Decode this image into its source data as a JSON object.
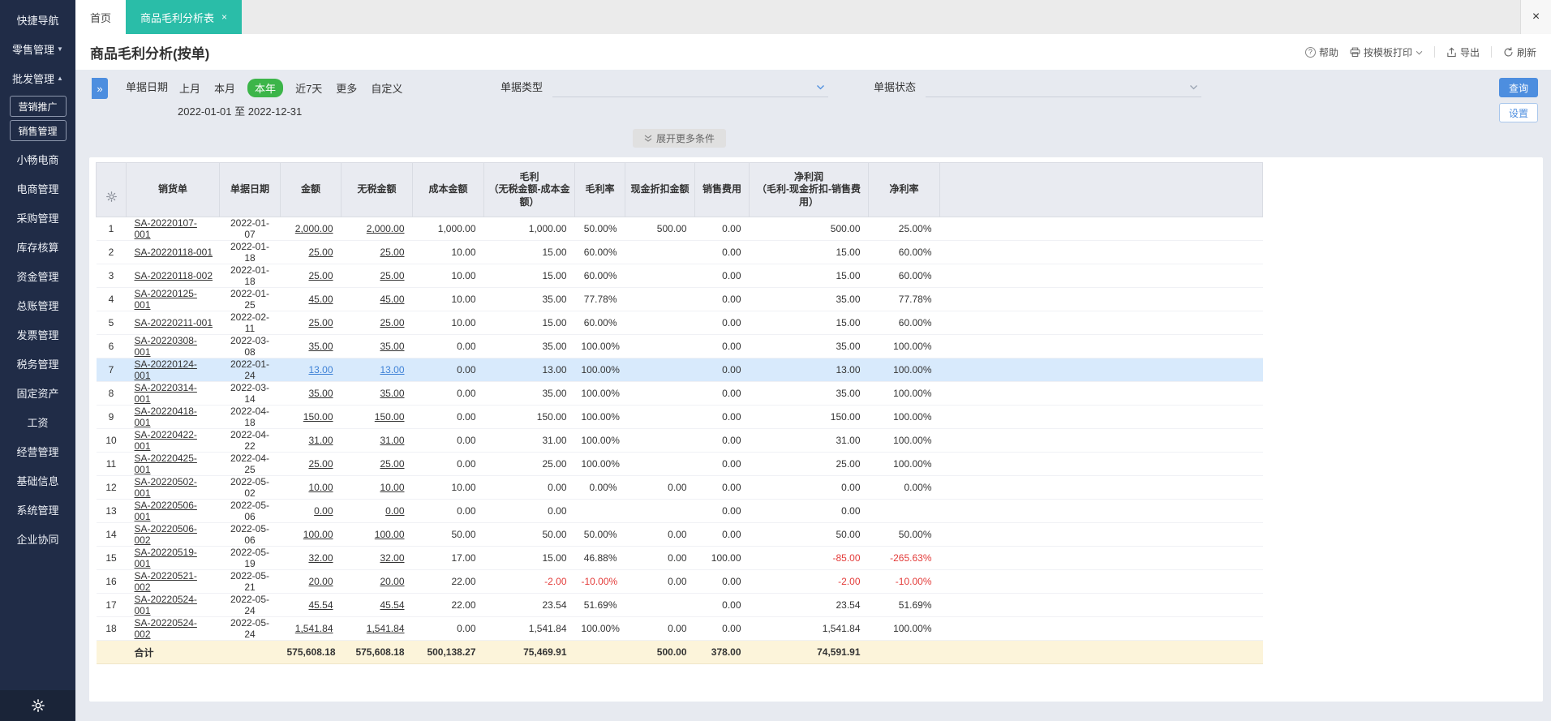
{
  "sidebar": {
    "items": [
      {
        "label": "快捷导航",
        "type": "top"
      },
      {
        "label": "零售管理",
        "type": "top",
        "caret": "down"
      },
      {
        "label": "批发管理",
        "type": "top",
        "caret": "up",
        "active": true
      },
      {
        "label": "营销推广",
        "type": "sub"
      },
      {
        "label": "销售管理",
        "type": "sub"
      },
      {
        "label": "小畅电商",
        "type": "top"
      },
      {
        "label": "电商管理",
        "type": "top"
      },
      {
        "label": "采购管理",
        "type": "top"
      },
      {
        "label": "库存核算",
        "type": "top"
      },
      {
        "label": "资金管理",
        "type": "top"
      },
      {
        "label": "总账管理",
        "type": "top"
      },
      {
        "label": "发票管理",
        "type": "top"
      },
      {
        "label": "税务管理",
        "type": "top"
      },
      {
        "label": "固定资产",
        "type": "top"
      },
      {
        "label": "工资",
        "type": "top"
      },
      {
        "label": "经营管理",
        "type": "top"
      },
      {
        "label": "基础信息",
        "type": "top"
      },
      {
        "label": "系统管理",
        "type": "top"
      },
      {
        "label": "企业协同",
        "type": "top"
      }
    ]
  },
  "tabbar": {
    "home_tab": "首页",
    "active_tab": "商品毛利分析表",
    "close_glyph": "×"
  },
  "header": {
    "title": "商品毛利分析(按单)",
    "help": "帮助",
    "print": "按模板打印",
    "export": "导出",
    "refresh": "刷新"
  },
  "filters": {
    "collapse_glyph": "»",
    "date_label": "单据日期",
    "date_options": [
      "上月",
      "本月",
      "本年",
      "近7天",
      "更多",
      "自定义"
    ],
    "date_active": "本年",
    "date_range": "2022-01-01 至 2022-12-31",
    "type_label": "单据类型",
    "status_label": "单据状态",
    "query_button": "查询",
    "settings_button": "设置",
    "expand_more": "展开更多条件"
  },
  "table": {
    "columns": [
      "销货单",
      "单据日期",
      "金额",
      "无税金额",
      "成本金额",
      "毛利\n（无税金额-成本金额）",
      "毛利率",
      "现金折扣金额",
      "销售费用",
      "净利润\n（毛利-现金折扣-销售费用）",
      "净利率"
    ],
    "rows": [
      {
        "num": "1",
        "order": "SA-20220107-001",
        "date": "2022-01-07",
        "amount": "2,000.00",
        "tax_free": "2,000.00",
        "cost": "1,000.00",
        "gross": "1,000.00",
        "gross_rate": "50.00%",
        "cash_discount": "500.00",
        "expense": "0.00",
        "net": "500.00",
        "net_rate": "25.00%"
      },
      {
        "num": "2",
        "order": "SA-20220118-001",
        "date": "2022-01-18",
        "amount": "25.00",
        "tax_free": "25.00",
        "cost": "10.00",
        "gross": "15.00",
        "gross_rate": "60.00%",
        "cash_discount": "",
        "expense": "0.00",
        "net": "15.00",
        "net_rate": "60.00%"
      },
      {
        "num": "3",
        "order": "SA-20220118-002",
        "date": "2022-01-18",
        "amount": "25.00",
        "tax_free": "25.00",
        "cost": "10.00",
        "gross": "15.00",
        "gross_rate": "60.00%",
        "cash_discount": "",
        "expense": "0.00",
        "net": "15.00",
        "net_rate": "60.00%"
      },
      {
        "num": "4",
        "order": "SA-20220125-001",
        "date": "2022-01-25",
        "amount": "45.00",
        "tax_free": "45.00",
        "cost": "10.00",
        "gross": "35.00",
        "gross_rate": "77.78%",
        "cash_discount": "",
        "expense": "0.00",
        "net": "35.00",
        "net_rate": "77.78%"
      },
      {
        "num": "5",
        "order": "SA-20220211-001",
        "date": "2022-02-11",
        "amount": "25.00",
        "tax_free": "25.00",
        "cost": "10.00",
        "gross": "15.00",
        "gross_rate": "60.00%",
        "cash_discount": "",
        "expense": "0.00",
        "net": "15.00",
        "net_rate": "60.00%"
      },
      {
        "num": "6",
        "order": "SA-20220308-001",
        "date": "2022-03-08",
        "amount": "35.00",
        "tax_free": "35.00",
        "cost": "0.00",
        "gross": "35.00",
        "gross_rate": "100.00%",
        "cash_discount": "",
        "expense": "0.00",
        "net": "35.00",
        "net_rate": "100.00%"
      },
      {
        "num": "7",
        "order": "SA-20220124-001",
        "date": "2022-01-24",
        "amount": "13.00",
        "tax_free": "13.00",
        "cost": "0.00",
        "gross": "13.00",
        "gross_rate": "100.00%",
        "cash_discount": "",
        "expense": "0.00",
        "net": "13.00",
        "net_rate": "100.00%",
        "highlight": true
      },
      {
        "num": "8",
        "order": "SA-20220314-001",
        "date": "2022-03-14",
        "amount": "35.00",
        "tax_free": "35.00",
        "cost": "0.00",
        "gross": "35.00",
        "gross_rate": "100.00%",
        "cash_discount": "",
        "expense": "0.00",
        "net": "35.00",
        "net_rate": "100.00%"
      },
      {
        "num": "9",
        "order": "SA-20220418-001",
        "date": "2022-04-18",
        "amount": "150.00",
        "tax_free": "150.00",
        "cost": "0.00",
        "gross": "150.00",
        "gross_rate": "100.00%",
        "cash_discount": "",
        "expense": "0.00",
        "net": "150.00",
        "net_rate": "100.00%"
      },
      {
        "num": "10",
        "order": "SA-20220422-001",
        "date": "2022-04-22",
        "amount": "31.00",
        "tax_free": "31.00",
        "cost": "0.00",
        "gross": "31.00",
        "gross_rate": "100.00%",
        "cash_discount": "",
        "expense": "0.00",
        "net": "31.00",
        "net_rate": "100.00%"
      },
      {
        "num": "11",
        "order": "SA-20220425-001",
        "date": "2022-04-25",
        "amount": "25.00",
        "tax_free": "25.00",
        "cost": "0.00",
        "gross": "25.00",
        "gross_rate": "100.00%",
        "cash_discount": "",
        "expense": "0.00",
        "net": "25.00",
        "net_rate": "100.00%"
      },
      {
        "num": "12",
        "order": "SA-20220502-001",
        "date": "2022-05-02",
        "amount": "10.00",
        "tax_free": "10.00",
        "cost": "10.00",
        "gross": "0.00",
        "gross_rate": "0.00%",
        "cash_discount": "0.00",
        "expense": "0.00",
        "net": "0.00",
        "net_rate": "0.00%"
      },
      {
        "num": "13",
        "order": "SA-20220506-001",
        "date": "2022-05-06",
        "amount": "0.00",
        "tax_free": "0.00",
        "cost": "0.00",
        "gross": "0.00",
        "gross_rate": "",
        "cash_discount": "",
        "expense": "0.00",
        "net": "0.00",
        "net_rate": ""
      },
      {
        "num": "14",
        "order": "SA-20220506-002",
        "date": "2022-05-06",
        "amount": "100.00",
        "tax_free": "100.00",
        "cost": "50.00",
        "gross": "50.00",
        "gross_rate": "50.00%",
        "cash_discount": "0.00",
        "expense": "0.00",
        "net": "50.00",
        "net_rate": "50.00%"
      },
      {
        "num": "15",
        "order": "SA-20220519-001",
        "date": "2022-05-19",
        "amount": "32.00",
        "tax_free": "32.00",
        "cost": "17.00",
        "gross": "15.00",
        "gross_rate": "46.88%",
        "cash_discount": "0.00",
        "expense": "100.00",
        "net": "-85.00",
        "net_rate": "-265.63%"
      },
      {
        "num": "16",
        "order": "SA-20220521-002",
        "date": "2022-05-21",
        "amount": "20.00",
        "tax_free": "20.00",
        "cost": "22.00",
        "gross": "-2.00",
        "gross_rate": "-10.00%",
        "cash_discount": "0.00",
        "expense": "0.00",
        "net": "-2.00",
        "net_rate": "-10.00%"
      },
      {
        "num": "17",
        "order": "SA-20220524-001",
        "date": "2022-05-24",
        "amount": "45.54",
        "tax_free": "45.54",
        "cost": "22.00",
        "gross": "23.54",
        "gross_rate": "51.69%",
        "cash_discount": "",
        "expense": "0.00",
        "net": "23.54",
        "net_rate": "51.69%"
      },
      {
        "num": "18",
        "order": "SA-20220524-002",
        "date": "2022-05-24",
        "amount": "1,541.84",
        "tax_free": "1,541.84",
        "cost": "0.00",
        "gross": "1,541.84",
        "gross_rate": "100.00%",
        "cash_discount": "0.00",
        "expense": "0.00",
        "net": "1,541.84",
        "net_rate": "100.00%"
      }
    ],
    "total": {
      "label": "合计",
      "amount": "575,608.18",
      "tax_free": "575,608.18",
      "cost": "500,138.27",
      "gross": "75,469.91",
      "gross_rate": "",
      "cash_discount": "500.00",
      "expense": "378.00",
      "net": "74,591.91",
      "net_rate": ""
    }
  }
}
